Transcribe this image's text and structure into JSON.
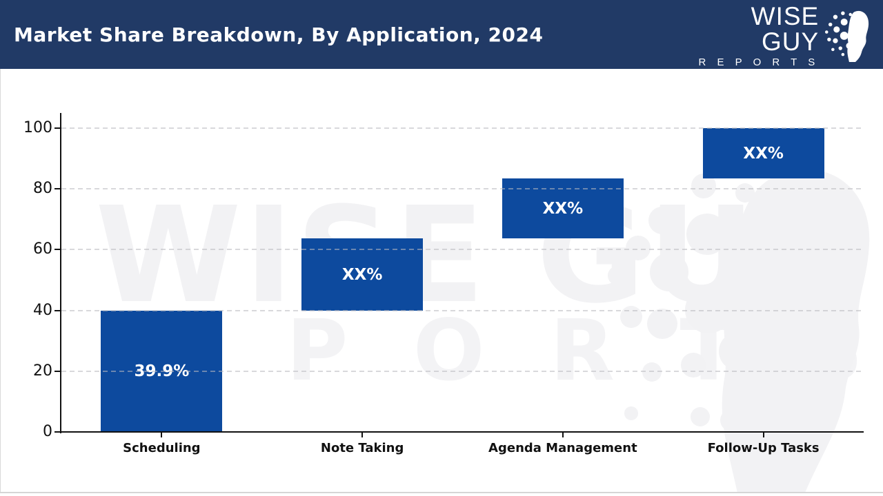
{
  "header": {
    "title": "Market Share Breakdown, By Application, 2024",
    "logo": {
      "line1": "WISE GUY",
      "line2": "R E P O R T S",
      "face_icon": "dotted-head-profile"
    }
  },
  "watermark": {
    "line1": "WISE GUY",
    "line2": "P O R T S",
    "face_icon": "dotted-head-profile"
  },
  "colors": {
    "header_bg": "#213a66",
    "bar": "#0d4a9e",
    "bar_label": "#ffffff",
    "grid": "#dcdcdc",
    "axis": "#111111",
    "watermark": "#f2f2f4"
  },
  "chart_data": {
    "type": "bar",
    "subtype": "waterfall",
    "title": "Market Share Breakdown, By Application, 2024",
    "categories": [
      "Scheduling",
      "Note Taking",
      "Agenda Management",
      "Follow-Up Tasks"
    ],
    "segments": [
      {
        "category": "Scheduling",
        "start": 0,
        "end": 39.9,
        "label": "39.9%"
      },
      {
        "category": "Note Taking",
        "start": 39.9,
        "end": 63.7,
        "label": "XX%"
      },
      {
        "category": "Agenda Management",
        "start": 63.7,
        "end": 83.4,
        "label": "XX%"
      },
      {
        "category": "Follow-Up Tasks",
        "start": 83.4,
        "end": 100,
        "label": "XX%"
      }
    ],
    "yticks": [
      0,
      20,
      40,
      60,
      80,
      100
    ],
    "ylim": [
      0,
      105
    ],
    "xlabel": "",
    "ylabel": "",
    "grid": "horizontal-dashed",
    "legend": null,
    "bar_color": "#0d4a9e"
  }
}
